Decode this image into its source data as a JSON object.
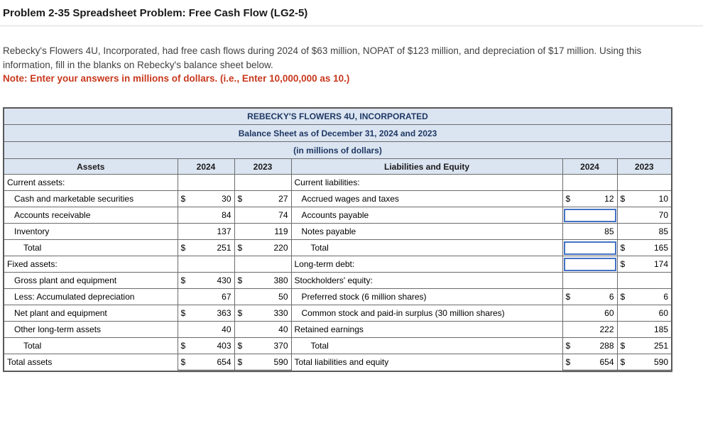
{
  "colors": {
    "note_red": "#c8381d",
    "table_header_bg": "#dbe5f1",
    "table_header_text": "#1f3864",
    "input_border_blue": "#4472c4",
    "table_border": "#6b6b6b"
  },
  "page": {
    "title": "Problem 2-35 Spreadsheet Problem: Free Cash Flow (LG2-5)",
    "description": "Rebecky's Flowers 4U, Incorporated, had free cash flows during 2024 of $63 million, NOPAT of $123 million, and depreciation of $17 million. Using this information, fill in the blanks on Rebecky's balance sheet below.",
    "note": "Note: Enter your answers in millions of dollars. (i.e., Enter 10,000,000 as 10.)"
  },
  "table": {
    "company": "REBECKY'S FLOWERS 4U, INCORPORATED",
    "statement": "Balance Sheet as of December 31, 2024 and 2023",
    "units": "(in millions of dollars)",
    "headers": {
      "assets": "Assets",
      "y2024": "2024",
      "y2023": "2023",
      "liabilities": "Liabilities and Equity"
    },
    "rows": [
      {
        "left": {
          "label": "Current assets:"
        },
        "right": {
          "label": "Current liabilities:"
        }
      },
      {
        "left": {
          "label": "Cash and marketable securities",
          "d24": "$",
          "v24": "30",
          "d23": "$",
          "v23": "27"
        },
        "right": {
          "label": "Accrued wages and taxes",
          "d24": "$",
          "v24": "12",
          "d23": "$",
          "v23": "10"
        }
      },
      {
        "left": {
          "label": "Accounts receivable",
          "v24": "84",
          "v23": "74"
        },
        "right": {
          "label": "Accounts payable",
          "input24": true,
          "v23": "70"
        }
      },
      {
        "left": {
          "label": "Inventory",
          "v24": "137",
          "v23": "119"
        },
        "right": {
          "label": "Notes payable",
          "v24": "85",
          "v23": "85"
        }
      },
      {
        "left": {
          "label": "Total",
          "d24": "$",
          "v24": "251",
          "d23": "$",
          "v23": "220"
        },
        "right": {
          "label": "Total",
          "input24": true,
          "d23": "$",
          "v23": "165"
        }
      },
      {
        "left": {
          "label": "Fixed assets:"
        },
        "right": {
          "label": "Long-term debt:",
          "input24": true,
          "d23": "$",
          "v23": "174"
        }
      },
      {
        "left": {
          "label": "Gross plant and equipment",
          "d24": "$",
          "v24": "430",
          "d23": "$",
          "v23": "380"
        },
        "right": {
          "label": "Stockholders' equity:"
        }
      },
      {
        "left": {
          "label": "Less: Accumulated depreciation",
          "v24": "67",
          "v23": "50"
        },
        "right": {
          "label": "Preferred stock (6 million shares)",
          "d24": "$",
          "v24": "6",
          "d23": "$",
          "v23": "6"
        }
      },
      {
        "left": {
          "label": "Net plant and equipment",
          "d24": "$",
          "v24": "363",
          "d23": "$",
          "v23": "330"
        },
        "right": {
          "label": "Common stock and paid-in surplus (30 million shares)",
          "v24": "60",
          "v23": "60"
        }
      },
      {
        "left": {
          "label": "Other long-term assets",
          "v24": "40",
          "v23": "40"
        },
        "right": {
          "label": "Retained earnings",
          "v24": "222",
          "v23": "185"
        }
      },
      {
        "left": {
          "label": "Total",
          "d24": "$",
          "v24": "403",
          "d23": "$",
          "v23": "370"
        },
        "right": {
          "label": "Total",
          "d24": "$",
          "v24": "288",
          "d23": "$",
          "v23": "251"
        }
      },
      {
        "left": {
          "label": "Total assets",
          "d24": "$",
          "v24": "654",
          "d23": "$",
          "v23": "590"
        },
        "right": {
          "label": "Total liabilities and equity",
          "d24": "$",
          "v24": "654",
          "d23": "$",
          "v23": "590"
        }
      }
    ]
  }
}
